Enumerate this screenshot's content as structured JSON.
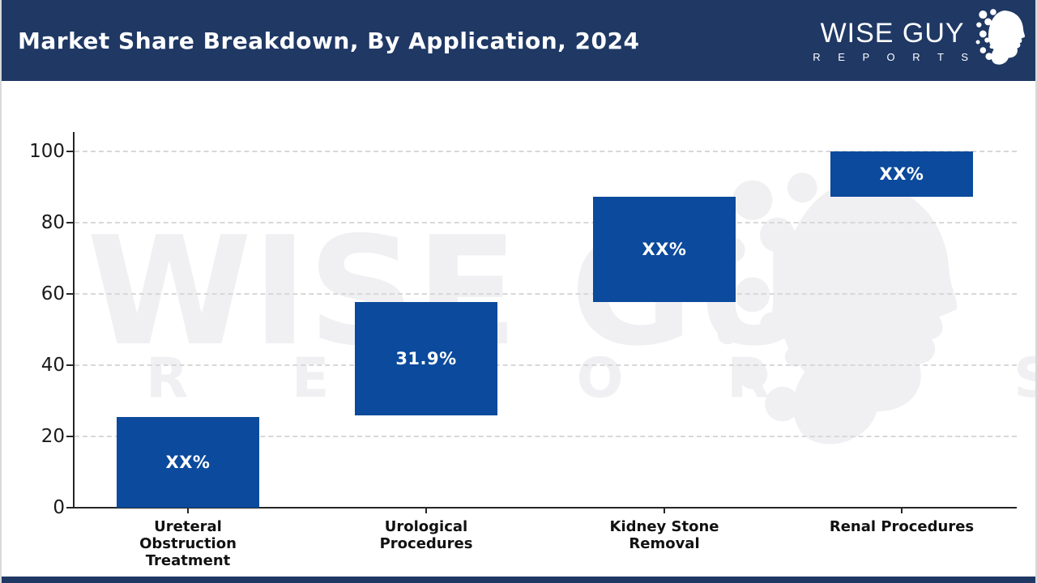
{
  "header": {
    "title": "Market Share Breakdown, By Application, 2024",
    "logo": {
      "line1": "WISE GUY",
      "line2": "R E P O R T S"
    }
  },
  "watermark": {
    "line1": "WISE GUY",
    "line2": "R E P O R T S"
  },
  "colors": {
    "header_bg": "#1f3864",
    "bar": "#0b4a9c",
    "grid": "#d8d8d8",
    "axis": "#262626",
    "watermark": "#f0f0f3"
  },
  "chart_data": {
    "type": "bar",
    "subtype": "waterfall",
    "title": "Market Share Breakdown, By Application, 2024",
    "xlabel": "",
    "ylabel": "",
    "ylim": [
      0,
      105
    ],
    "yticks": [
      0,
      20,
      40,
      60,
      80,
      100
    ],
    "grid": "horizontal-dashed",
    "legend": "none",
    "categories": [
      "Ureteral Obstruction Treatment",
      "Urological Procedures",
      "Kidney Stone Removal",
      "Renal Procedures"
    ],
    "category_lines": [
      [
        "Ureteral",
        "Obstruction",
        "Treatment"
      ],
      [
        "Urological",
        "Procedures"
      ],
      [
        "Kidney Stone",
        "Removal"
      ],
      [
        "Renal Procedures"
      ]
    ],
    "segments": [
      {
        "start": 0,
        "end": 25.5,
        "value": 25.5,
        "label": "XX%"
      },
      {
        "start": 25.8,
        "end": 57.7,
        "value": 31.9,
        "label": "31.9%"
      },
      {
        "start": 57.7,
        "end": 87.3,
        "value": 29.6,
        "label": "XX%"
      },
      {
        "start": 87.3,
        "end": 100,
        "value": 12.7,
        "label": "XX%"
      }
    ]
  }
}
